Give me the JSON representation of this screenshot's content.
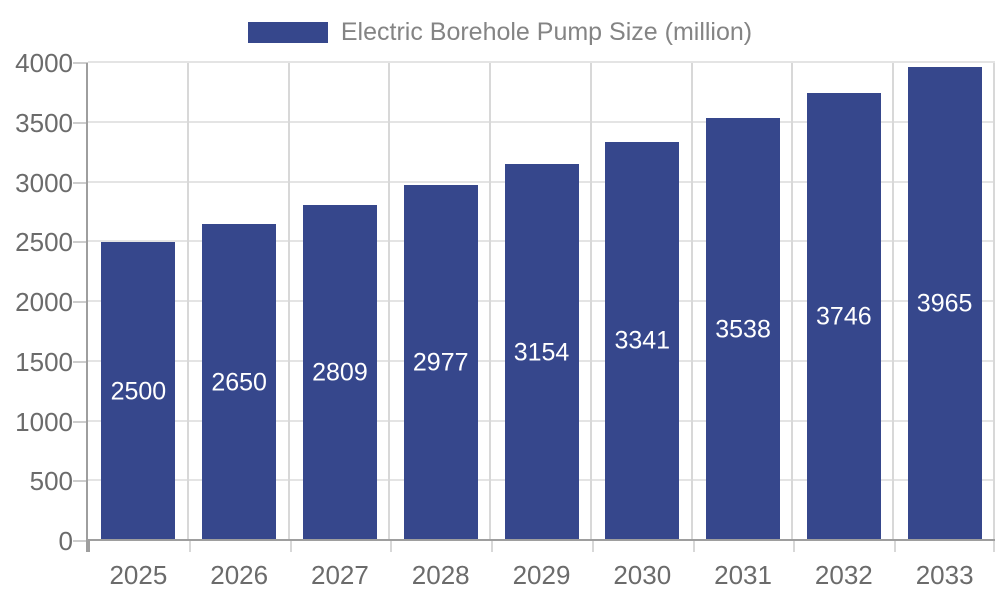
{
  "legend": {
    "label": "Electric Borehole Pump Size (million)"
  },
  "chart_data": {
    "type": "bar",
    "title": "Electric Borehole Pump Size (million)",
    "series_name": "Electric Borehole Pump Size (million)",
    "categories": [
      "2025",
      "2026",
      "2027",
      "2028",
      "2029",
      "2030",
      "2031",
      "2032",
      "2033"
    ],
    "values": [
      2500,
      2650,
      2809,
      2977,
      3154,
      3341,
      3538,
      3746,
      3965
    ],
    "xlabel": "",
    "ylabel": "",
    "ylim": [
      0,
      4000
    ],
    "ytick_interval": 500,
    "ytick_labels": [
      "0",
      "500",
      "1000",
      "1500",
      "2000",
      "2500",
      "3000",
      "3500",
      "4000"
    ],
    "grid": true,
    "legend_position": "top-center",
    "value_labels": "inside-center",
    "colors": {
      "bar": "#36478C",
      "value_label": "#FFFFFF",
      "axis_label": "#6B6B6B",
      "legend_text": "#848484",
      "gridline": "#E4E4E4",
      "category_line": "#D8D8D8",
      "axis_line": "#9E9E9E",
      "background": "#FFFFFF"
    }
  }
}
